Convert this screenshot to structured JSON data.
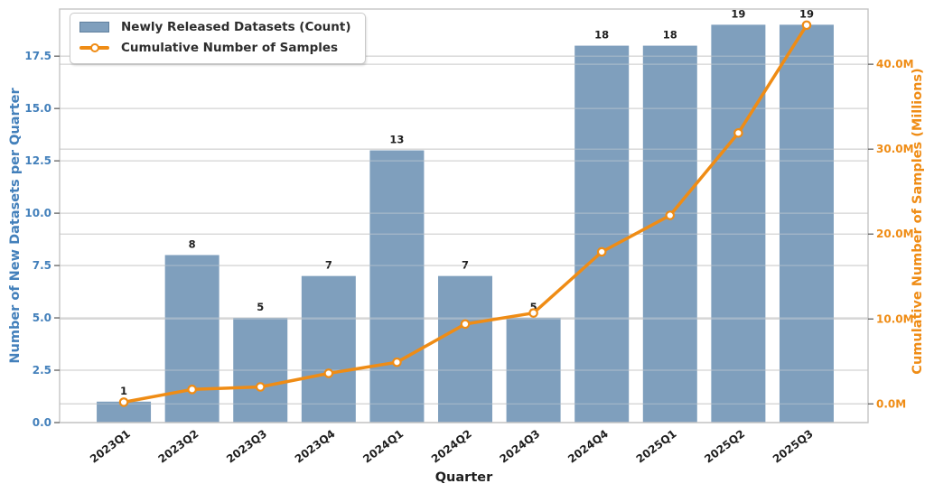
{
  "colors": {
    "bar": "#7f9fbd",
    "left_axis": "#4380bb",
    "orange": "#ef8c15",
    "grid": "#d6d6d6",
    "spine": "#c4c4c4",
    "tick_mark": "#555555",
    "bar_label_text": "#1f1f1f",
    "x_tick_text": "#1f1f1f",
    "legend_text": "#2d2d2d"
  },
  "chart_data": {
    "type": "bar+line combo (dual y-axis)",
    "title": "",
    "xlabel": "Quarter",
    "ylabel_left": "Number of New Datasets per Quarter",
    "ylabel_right": "Cumulative Number of Samples (Millions)",
    "categories": [
      "2023Q1",
      "2023Q2",
      "2023Q3",
      "2023Q4",
      "2024Q1",
      "2024Q2",
      "2024Q3",
      "2024Q4",
      "2025Q1",
      "2025Q2",
      "2025Q3"
    ],
    "series": [
      {
        "name": "Newly Released Datasets (Count)",
        "type": "bar",
        "axis": "left",
        "values": [
          1,
          8,
          5,
          7,
          13,
          7,
          5,
          18,
          18,
          19,
          19
        ]
      },
      {
        "name": "Cumulative Number of Samples",
        "type": "line",
        "axis": "right",
        "values_millions": [
          0.2,
          1.7,
          2.0,
          3.6,
          4.9,
          9.4,
          10.7,
          17.9,
          22.2,
          31.9,
          44.6
        ]
      }
    ],
    "left_tick_values": [
      0,
      2.5,
      5,
      7.5,
      10,
      12.5,
      15,
      17.5
    ],
    "left_tick_labels": [
      "0.0",
      "2.5",
      "5.0",
      "7.5",
      "10.0",
      "12.5",
      "15.0",
      "17.5"
    ],
    "right_tick_values": [
      0,
      10,
      20,
      30,
      40
    ],
    "right_tick_labels": [
      "0.0M",
      "10.0M",
      "20.0M",
      "30.0M",
      "40.0M"
    ],
    "ylim_left": [
      0,
      19.75
    ],
    "ylim_right": [
      -2.2,
      46.5
    ],
    "xlim": [
      -0.94,
      10.9
    ],
    "grid": true,
    "bar_value_labels": [
      "1",
      "8",
      "5",
      "7",
      "13",
      "7",
      "5",
      "18",
      "18",
      "19",
      "19"
    ],
    "legend_position": "upper left"
  }
}
